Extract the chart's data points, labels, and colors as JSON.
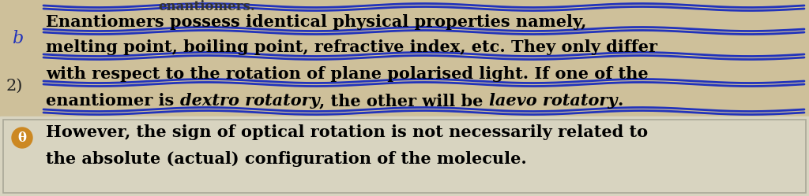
{
  "upper_bg": "#cec09a",
  "lower_bg": "#d8d4c0",
  "box_border_color": "#aaa898",
  "upper_text_lines": [
    "    Enantiomers possess identical physical properties namely,",
    "melting point, boiling point, refractive index, etc. They only differ",
    "with respect to the rotation of plane polarised light. If one of the",
    "enantiomer is dextro rotatory, the other will be laevo rotatory."
  ],
  "lower_text_line1": "However, the sign of optical rotation is not necessarily related to",
  "lower_text_line2": "the absolute (actual) configuration of the molecule.",
  "highlight_color": "#2233bb",
  "left_label_b": "b",
  "left_label_2": "2)",
  "bullet_color": "#cc8822",
  "bullet_symbol": "θ",
  "font_size": 15,
  "fig_width": 10.24,
  "fig_height": 2.49,
  "dpi": 100
}
